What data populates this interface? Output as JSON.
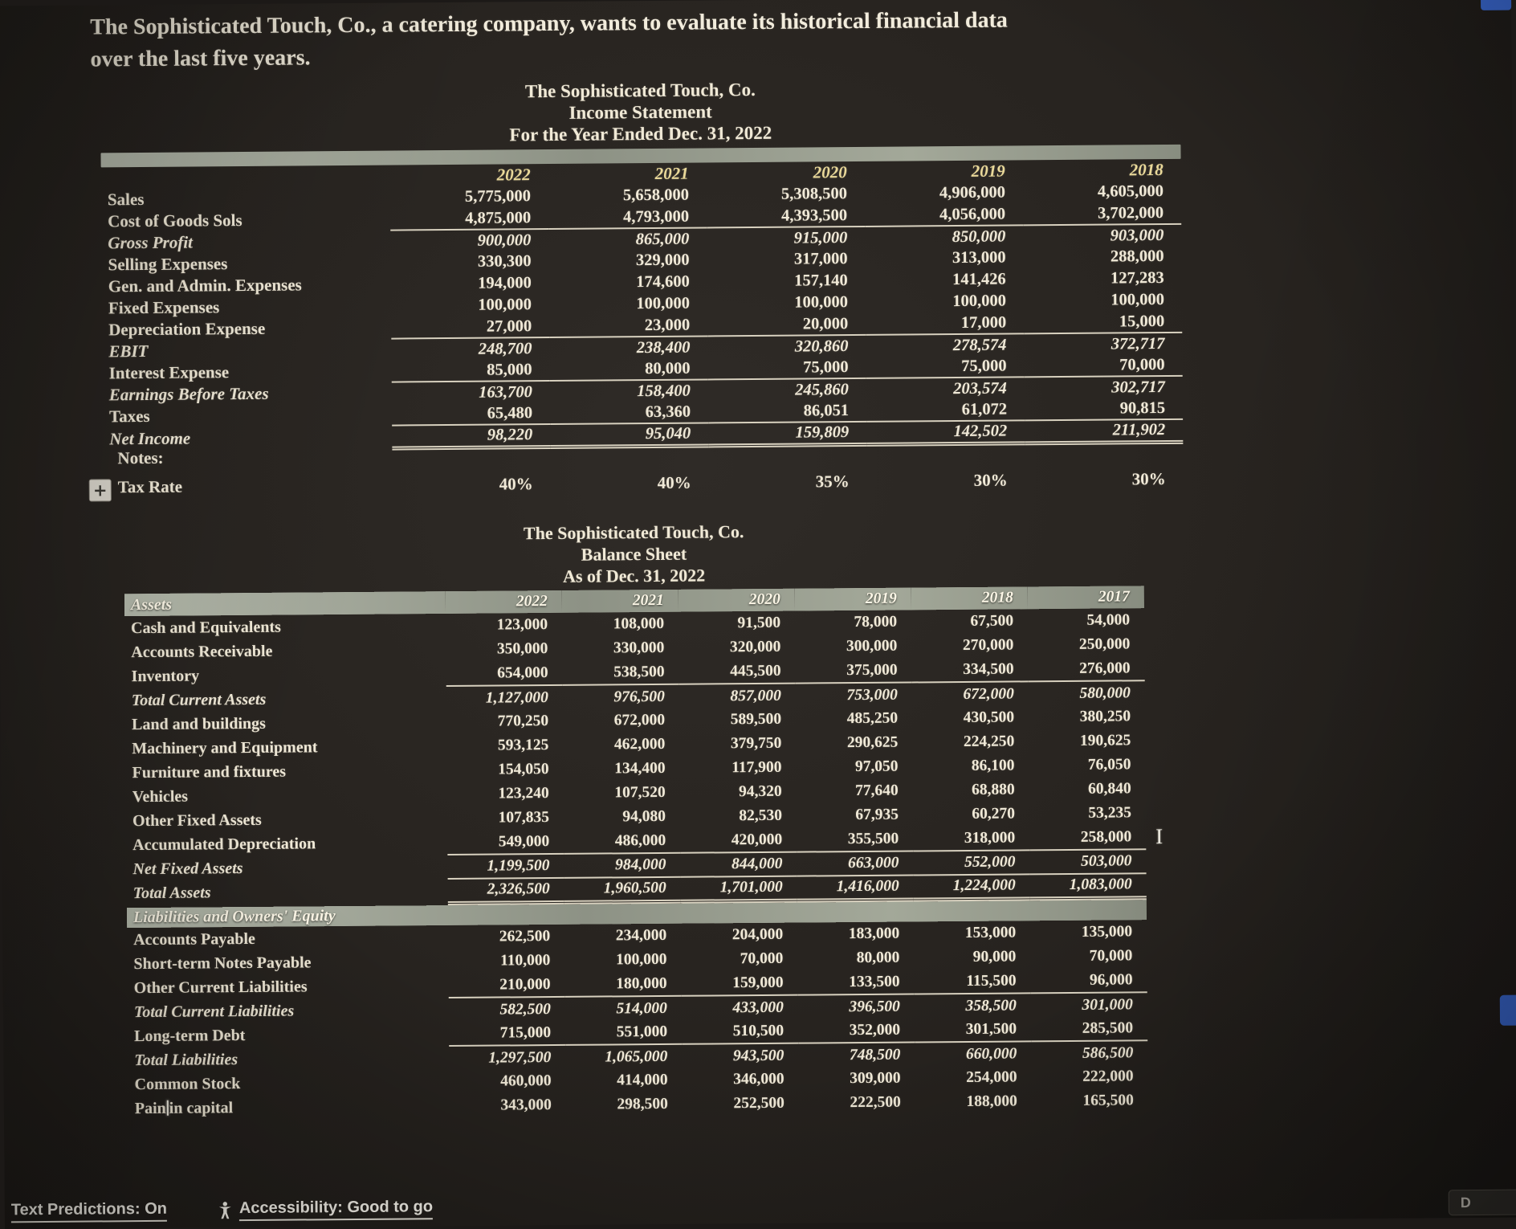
{
  "intro": {
    "line1": "The Sophisticated Touch, Co., a catering company, wants to evaluate its historical financial data",
    "line2": "over the last five years."
  },
  "income_statement": {
    "title": "The Sophisticated Touch, Co.",
    "subtitle": "Income Statement",
    "period": "For the Year Ended Dec. 31, 2022",
    "years": [
      "2022",
      "2021",
      "2020",
      "2019",
      "2018"
    ],
    "rows": [
      {
        "label": "Sales",
        "values": [
          "5,775,000",
          "5,658,000",
          "5,308,500",
          "4,906,000",
          "4,605,000"
        ]
      },
      {
        "label": "Cost of Goods Sols",
        "values": [
          "4,875,000",
          "4,793,000",
          "4,393,500",
          "4,056,000",
          "3,702,000"
        ],
        "rule": "below"
      },
      {
        "label": "Gross Profit",
        "values": [
          "900,000",
          "865,000",
          "915,000",
          "850,000",
          "903,000"
        ],
        "emphasis": true
      },
      {
        "label": "Selling Expenses",
        "values": [
          "330,300",
          "329,000",
          "317,000",
          "313,000",
          "288,000"
        ]
      },
      {
        "label": "Gen. and Admin. Expenses",
        "values": [
          "194,000",
          "174,600",
          "157,140",
          "141,426",
          "127,283"
        ]
      },
      {
        "label": "Fixed Expenses",
        "values": [
          "100,000",
          "100,000",
          "100,000",
          "100,000",
          "100,000"
        ]
      },
      {
        "label": "Depreciation Expense",
        "values": [
          "27,000",
          "23,000",
          "20,000",
          "17,000",
          "15,000"
        ],
        "rule": "below"
      },
      {
        "label": "EBIT",
        "values": [
          "248,700",
          "238,400",
          "320,860",
          "278,574",
          "372,717"
        ],
        "emphasis": true
      },
      {
        "label": "Interest Expense",
        "values": [
          "85,000",
          "80,000",
          "75,000",
          "75,000",
          "70,000"
        ],
        "rule": "below"
      },
      {
        "label": "Earnings Before Taxes",
        "values": [
          "163,700",
          "158,400",
          "245,860",
          "203,574",
          "302,717"
        ],
        "emphasis": true
      },
      {
        "label": "Taxes",
        "values": [
          "65,480",
          "63,360",
          "86,051",
          "61,072",
          "90,815"
        ],
        "rule": "below"
      },
      {
        "label": "Net Income",
        "values": [
          "98,220",
          "95,040",
          "159,809",
          "142,502",
          "211,902"
        ],
        "emphasis": true,
        "rule": "double-below"
      }
    ],
    "notes_label": "Notes:",
    "tax_rate_label": "Tax Rate",
    "tax_rates": [
      "40%",
      "40%",
      "35%",
      "30%",
      "30%"
    ]
  },
  "balance_sheet": {
    "title": "The Sophisticated Touch, Co.",
    "subtitle": "Balance Sheet",
    "period": "As of Dec. 31, 2022",
    "assets_header": "Assets",
    "years": [
      "2022",
      "2021",
      "2020",
      "2019",
      "2018",
      "2017"
    ],
    "asset_rows": [
      {
        "label": "Cash and Equivalents",
        "values": [
          "123,000",
          "108,000",
          "91,500",
          "78,000",
          "67,500",
          "54,000"
        ]
      },
      {
        "label": "Accounts Receivable",
        "values": [
          "350,000",
          "330,000",
          "320,000",
          "300,000",
          "270,000",
          "250,000"
        ]
      },
      {
        "label": "Inventory",
        "values": [
          "654,000",
          "538,500",
          "445,500",
          "375,000",
          "334,500",
          "276,000"
        ],
        "rule": "below"
      },
      {
        "label": "Total Current Assets",
        "values": [
          "1,127,000",
          "976,500",
          "857,000",
          "753,000",
          "672,000",
          "580,000"
        ],
        "emphasis": true
      },
      {
        "label": "Land and buildings",
        "values": [
          "770,250",
          "672,000",
          "589,500",
          "485,250",
          "430,500",
          "380,250"
        ]
      },
      {
        "label": "Machinery and Equipment",
        "values": [
          "593,125",
          "462,000",
          "379,750",
          "290,625",
          "224,250",
          "190,625"
        ]
      },
      {
        "label": "Furniture and fixtures",
        "values": [
          "154,050",
          "134,400",
          "117,900",
          "97,050",
          "86,100",
          "76,050"
        ]
      },
      {
        "label": "Vehicles",
        "values": [
          "123,240",
          "107,520",
          "94,320",
          "77,640",
          "68,880",
          "60,840"
        ]
      },
      {
        "label": "Other Fixed Assets",
        "values": [
          "107,835",
          "94,080",
          "82,530",
          "67,935",
          "60,270",
          "53,235"
        ]
      },
      {
        "label": "Accumulated Depreciation",
        "values": [
          "549,000",
          "486,000",
          "420,000",
          "355,500",
          "318,000",
          "258,000"
        ],
        "rule": "below"
      },
      {
        "label": "Net Fixed Assets",
        "values": [
          "1,199,500",
          "984,000",
          "844,000",
          "663,000",
          "552,000",
          "503,000"
        ],
        "emphasis": true,
        "rule": "below"
      },
      {
        "label": "Total Assets",
        "values": [
          "2,326,500",
          "1,960,500",
          "1,701,000",
          "1,416,000",
          "1,224,000",
          "1,083,000"
        ],
        "emphasis": true,
        "rule": "double-below"
      }
    ],
    "liabilities_header": "Liabilities and Owners' Equity",
    "liability_rows": [
      {
        "label": "Accounts Payable",
        "values": [
          "262,500",
          "234,000",
          "204,000",
          "183,000",
          "153,000",
          "135,000"
        ]
      },
      {
        "label": "Short-term Notes Payable",
        "values": [
          "110,000",
          "100,000",
          "70,000",
          "80,000",
          "90,000",
          "70,000"
        ]
      },
      {
        "label": "Other Current Liabilities",
        "values": [
          "210,000",
          "180,000",
          "159,000",
          "133,500",
          "115,500",
          "96,000"
        ],
        "rule": "below"
      },
      {
        "label": "Total Current Liabilities",
        "values": [
          "582,500",
          "514,000",
          "433,000",
          "396,500",
          "358,500",
          "301,000"
        ],
        "emphasis": true
      },
      {
        "label": "Long-term Debt",
        "values": [
          "715,000",
          "551,000",
          "510,500",
          "352,000",
          "301,500",
          "285,500"
        ],
        "rule": "below"
      },
      {
        "label": "Total Liabilities",
        "values": [
          "1,297,500",
          "1,065,000",
          "943,500",
          "748,500",
          "660,000",
          "586,500"
        ],
        "emphasis": true
      },
      {
        "label": "Common Stock",
        "values": [
          "460,000",
          "414,000",
          "346,000",
          "309,000",
          "254,000",
          "222,000"
        ]
      },
      {
        "label": "Pain in capital",
        "caret_split": [
          "Pain",
          "in capital"
        ],
        "values": [
          "343,000",
          "298,500",
          "252,500",
          "222,500",
          "188,000",
          "165,500"
        ]
      }
    ]
  },
  "status_bar": {
    "text_predictions": "Text Predictions: On",
    "accessibility": "Accessibility: Good to go"
  },
  "fragments": {
    "focus_badge": "D"
  },
  "colors": {
    "background": "#282420",
    "text": "#f0e9d7",
    "year_text": "#ead999",
    "header_band": "#8d9285",
    "rule_line": "#d8d1bf",
    "ui_blue": "#3c6cd8"
  }
}
